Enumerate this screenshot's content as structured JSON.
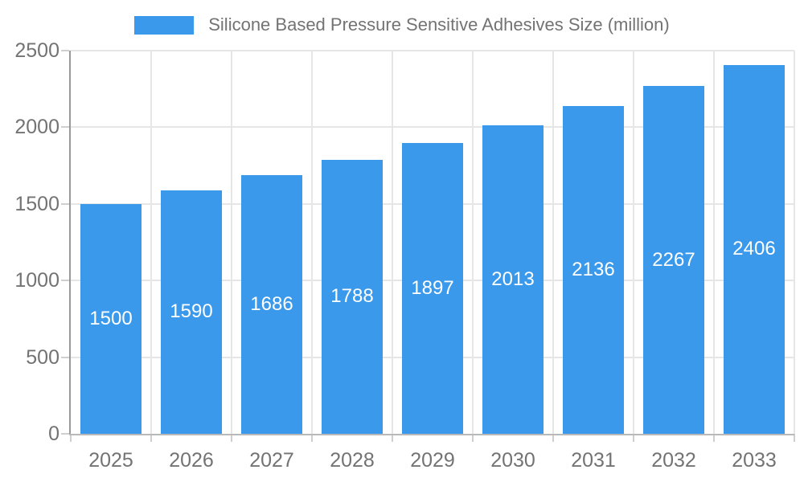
{
  "chart_data": {
    "type": "bar",
    "title": "Silicone Based Pressure Sensitive Adhesives Size (million)",
    "categories": [
      "2025",
      "2026",
      "2027",
      "2028",
      "2029",
      "2030",
      "2031",
      "2032",
      "2033"
    ],
    "values": [
      1500,
      1590,
      1686,
      1788,
      1897,
      2013,
      2136,
      2267,
      2406
    ],
    "xlabel": "",
    "ylabel": "",
    "ylim": [
      0,
      2500
    ],
    "yticks": [
      0,
      500,
      1000,
      1500,
      2000,
      2500
    ],
    "grid": true,
    "legend_position": "top",
    "bar_color": "#3B99EC",
    "bar_label_color": "#FFFFFF",
    "tick_label_color": "#737373",
    "legend_text_color": "#737373",
    "gridline_color": "#E6E6E6",
    "axis_y_color": "#999999",
    "axis_x_color": "#B9B9B9",
    "tick_mark_color": "#CFCFCF"
  }
}
